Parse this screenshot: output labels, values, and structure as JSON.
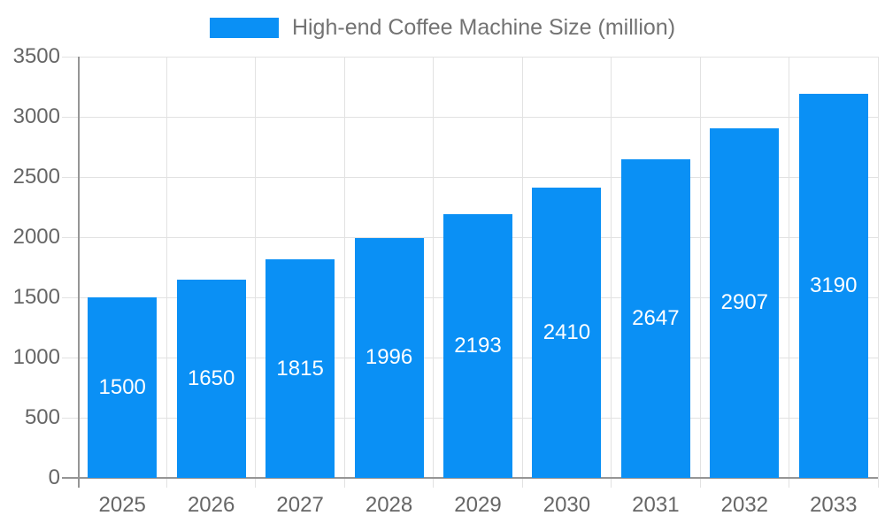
{
  "chart_data": {
    "type": "bar",
    "title": "High-end Coffee Machine Size (million)",
    "categories": [
      "2025",
      "2026",
      "2027",
      "2028",
      "2029",
      "2030",
      "2031",
      "2032",
      "2033"
    ],
    "values": [
      1500,
      1650,
      1815,
      1996,
      2193,
      2410,
      2647,
      2907,
      3190
    ],
    "xlabel": "",
    "ylabel": "",
    "ylim": [
      0,
      3500
    ],
    "yticks": [
      0,
      500,
      1000,
      1500,
      2000,
      2500,
      3000,
      3500
    ],
    "grid": true,
    "legend_position": "top",
    "bar_color": "#0a90f5",
    "bar_label_color": "#ffffff",
    "axis_color": "#959595",
    "grid_color": "#e2e2e2",
    "tick_label_color": "#666666",
    "legend_text_color": "#737373"
  }
}
